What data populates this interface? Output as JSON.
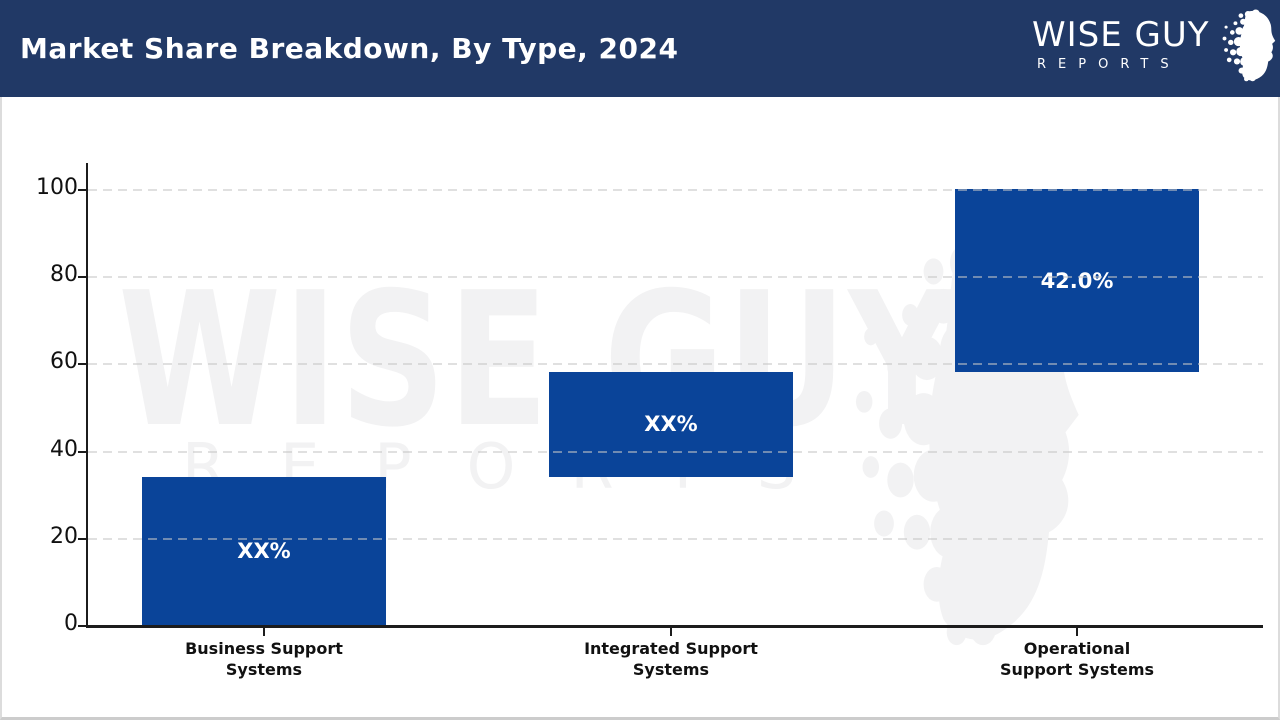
{
  "header": {
    "title": "Market Share Breakdown, By Type, 2024",
    "bg_color": "#213966",
    "logo": {
      "line1": "WISE GUY",
      "line2": "REPORTS",
      "head_icon": "dotted-face-profile"
    }
  },
  "watermark": {
    "line1": "WISE GUY",
    "line2": "REPORTS",
    "head_icon": "dotted-face-profile"
  },
  "chart_data": {
    "type": "bar",
    "subtype": "waterfall",
    "title": "Market Share Breakdown, By Type, 2024",
    "categories": [
      "Business Support Systems",
      "Integrated Support Systems",
      "Operational Support Systems"
    ],
    "categories_lines": [
      [
        "Business Support",
        "Systems"
      ],
      [
        "Integrated Support",
        "Systems"
      ],
      [
        "Operational",
        "Support Systems"
      ]
    ],
    "segments": [
      {
        "category": "Business Support Systems",
        "start": 0,
        "end": 34,
        "value": 34,
        "label": "XX%"
      },
      {
        "category": "Integrated Support Systems",
        "start": 34,
        "end": 58,
        "value": 24,
        "label": "XX%"
      },
      {
        "category": "Operational Support Systems",
        "start": 58,
        "end": 100,
        "value": 42,
        "label": "42.0%"
      }
    ],
    "bar_labels": [
      "XX%",
      "XX%",
      "42.0%"
    ],
    "y_ticks": [
      0,
      20,
      40,
      60,
      80,
      100
    ],
    "ylim": [
      0,
      105
    ],
    "xlabel": "",
    "ylabel": "",
    "bar_color": "#0a4499",
    "grid": "horizontal-dashed",
    "legend": "none"
  }
}
